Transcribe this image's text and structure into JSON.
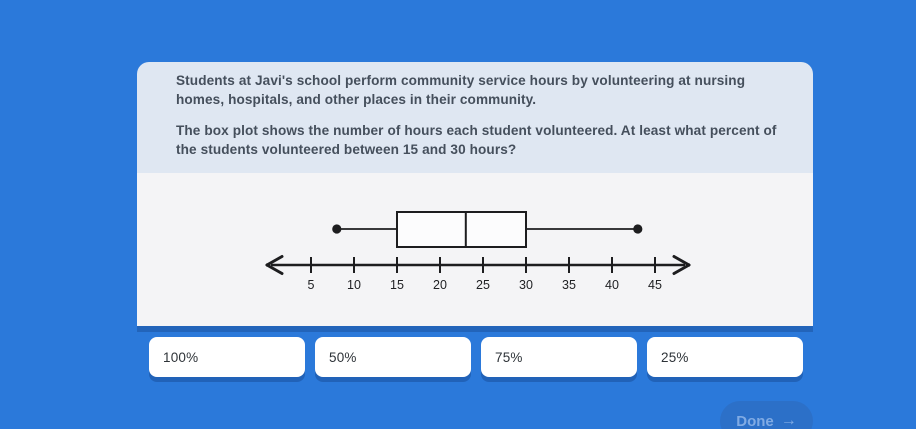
{
  "colors": {
    "background": "#2b79da",
    "question_panel": "#dfe7f2",
    "plot_panel": "#f4f4f6",
    "question_text": "#454f5c",
    "chart_ink": "#1d1d1f",
    "answer_bg": "#ffffff",
    "done_bg": "#2c70c8",
    "done_text": "#80abe4"
  },
  "question": {
    "paragraph1": "Students at Javi's school perform community service hours by volunteering at nursing homes, hospitals, and other places in their community.",
    "paragraph2": "The box plot shows the number of hours each student volunteered. At least what percent of the students volunteered between 15 and 30 hours?"
  },
  "answers": [
    {
      "label": "100%"
    },
    {
      "label": "50%"
    },
    {
      "label": "75%"
    },
    {
      "label": "25%"
    }
  ],
  "done_button": {
    "label": "Done",
    "arrow": "→"
  },
  "chart_data": {
    "type": "box",
    "orientation": "horizontal",
    "axis": {
      "min": 5,
      "max": 45,
      "ticks": [
        5,
        10,
        15,
        20,
        25,
        30,
        35,
        40,
        45
      ],
      "arrows_both_ends": true
    },
    "box": {
      "min": 8,
      "q1": 15,
      "median": 23,
      "q3": 30,
      "max": 43
    },
    "units": "hours volunteered"
  }
}
